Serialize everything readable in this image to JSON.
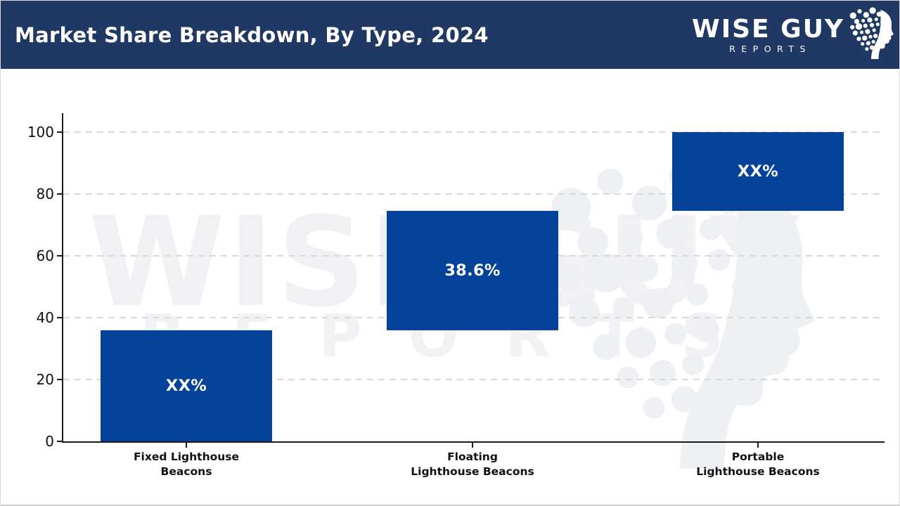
{
  "header": {
    "title": "Market Share Breakdown, By Type, 2024",
    "logo": {
      "line1": "WISE GUY",
      "line2": "REPORTS"
    }
  },
  "watermark": {
    "line1": "WISE GUY",
    "line2": "REPORTS"
  },
  "colors": {
    "header_bg": "#1f3864",
    "bar": "#05429a",
    "grid": "#d9d9d9",
    "axis": "#1a1a1a",
    "bar_label_text": "#ffffff",
    "watermark": "#f1f1f4"
  },
  "chart_data": {
    "type": "bar",
    "variant": "waterfall-stacked",
    "title": "Market Share Breakdown, By Type, 2024",
    "categories": [
      "Fixed Lighthouse Beacons",
      "Floating Lighthouse Beacons",
      "Portable Lighthouse Beacons"
    ],
    "segments": [
      {
        "category_lines": [
          "Fixed Lighthouse",
          "Beacons"
        ],
        "start": 0,
        "end": 36,
        "value": 36,
        "bar_label": "XX%"
      },
      {
        "category_lines": [
          "Floating",
          "Lighthouse Beacons"
        ],
        "start": 36,
        "end": 74.6,
        "value": 38.6,
        "bar_label": "38.6%"
      },
      {
        "category_lines": [
          "Portable",
          "Lighthouse Beacons"
        ],
        "start": 74.6,
        "end": 100,
        "value": 25.4,
        "bar_label": "XX%"
      }
    ],
    "xlabel": "",
    "ylabel": "",
    "yticks": [
      0,
      20,
      40,
      60,
      80,
      100
    ],
    "ylim": [
      0,
      106
    ],
    "grid": "horizontal-dashed",
    "legend": "none"
  }
}
